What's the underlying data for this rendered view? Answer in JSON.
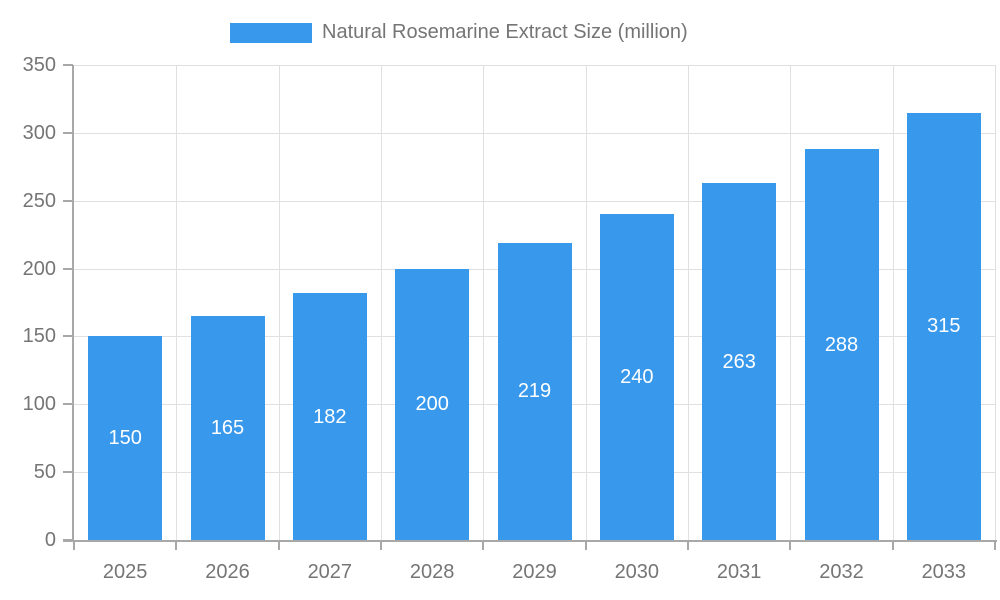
{
  "chart_data": {
    "type": "bar",
    "title": "Natural Rosemarine Extract Size (million)",
    "legend": {
      "label": "Natural Rosemarine Extract Size (million)",
      "position": "top"
    },
    "categories": [
      "2025",
      "2026",
      "2027",
      "2028",
      "2029",
      "2030",
      "2031",
      "2032",
      "2033"
    ],
    "values": [
      150,
      165,
      182,
      200,
      219,
      240,
      263,
      288,
      315
    ],
    "xlabel": "",
    "ylabel": "",
    "ylim": [
      0,
      350
    ],
    "yticks": [
      0,
      50,
      100,
      150,
      200,
      250,
      300,
      350
    ],
    "grid": true,
    "value_label_position": "inside-center",
    "colors": {
      "bar": "#3898EC",
      "axis_text": "#757575",
      "grid_line": "#E0E0E0",
      "axis_line": "#A8A8A8",
      "value_label": "#FFFFFF",
      "background": "#FFFFFF"
    }
  }
}
